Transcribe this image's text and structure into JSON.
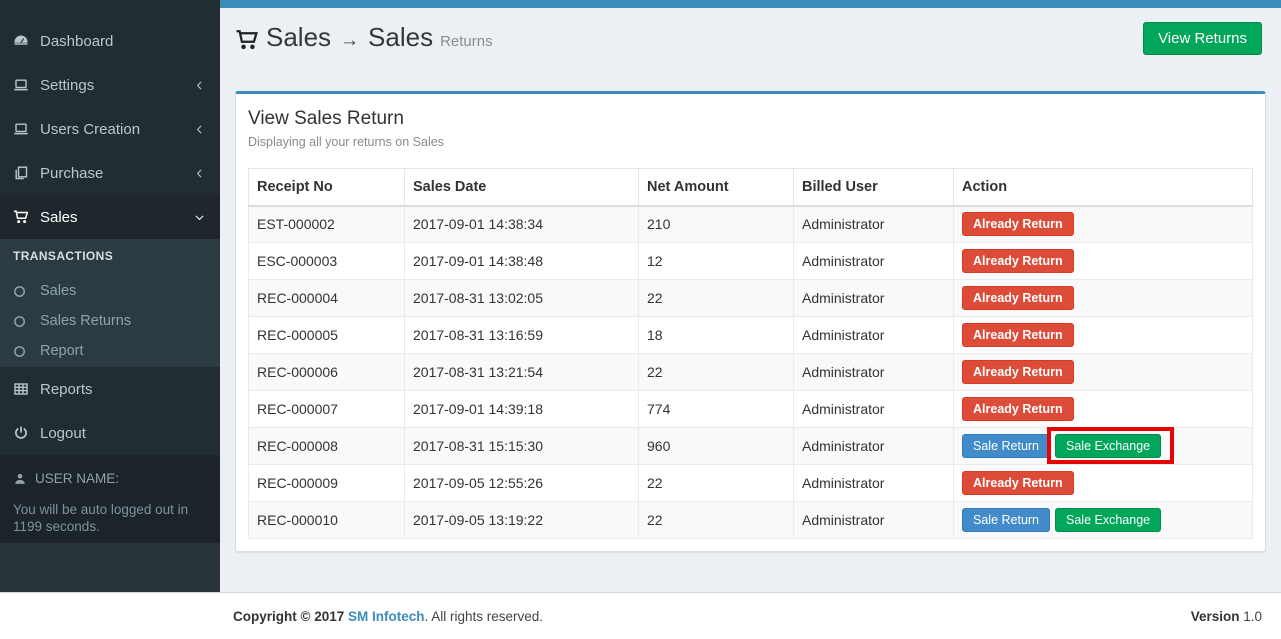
{
  "colors": {
    "topbar_blue": "#3c8dbc",
    "sidebar_dark": "#222d32",
    "submenu_dark": "#2c3b41",
    "button_green": "#00a65a",
    "button_blue": "#428bca",
    "button_red": "#dd4b39",
    "highlight_red": "#e60505",
    "content_bg": "#ecf0f5"
  },
  "sidebar": {
    "items": [
      {
        "label": "Dashboard",
        "icon": "dashboard-icon",
        "chevron": "",
        "active": false
      },
      {
        "label": "Settings",
        "icon": "laptop-icon",
        "chevron": "left",
        "active": false
      },
      {
        "label": "Users Creation",
        "icon": "laptop-icon",
        "chevron": "left",
        "active": false
      },
      {
        "label": "Purchase",
        "icon": "copy-icon",
        "chevron": "left",
        "active": false
      },
      {
        "label": "Sales",
        "icon": "cart-icon",
        "chevron": "down",
        "active": true
      }
    ],
    "submenu_header": "TRANSACTIONS",
    "submenu": [
      {
        "label": "Sales",
        "icon": "circle-outline-icon"
      },
      {
        "label": "Sales Returns",
        "icon": "circle-outline-icon"
      },
      {
        "label": "Report",
        "icon": "circle-outline-icon"
      }
    ],
    "items_bottom": [
      {
        "label": "Reports",
        "icon": "table-icon",
        "chevron": "",
        "active": false
      },
      {
        "label": "Logout",
        "icon": "power-icon",
        "chevron": "",
        "active": false
      }
    ],
    "user_panel": {
      "label": "USER NAME:",
      "note_line1": "You will be auto logged out in",
      "note_line2": "1199 seconds."
    }
  },
  "header": {
    "breadcrumb": {
      "section": "Sales",
      "arrow": "→",
      "page": "Sales",
      "sub": "Returns"
    },
    "view_returns_label": "View Returns"
  },
  "panel": {
    "title": "View Sales Return",
    "subtitle": "Displaying all your returns on Sales"
  },
  "table": {
    "columns": [
      "Receipt No",
      "Sales Date",
      "Net Amount",
      "Billed User",
      "Action"
    ],
    "rows": [
      {
        "receipt": "EST-000002",
        "date": "2017-09-01 14:38:34",
        "amount": "210",
        "user": "Administrator",
        "actions": [
          {
            "label": "Already Return",
            "type": "danger",
            "highlight": false
          }
        ]
      },
      {
        "receipt": "ESC-000003",
        "date": "2017-09-01 14:38:48",
        "amount": "12",
        "user": "Administrator",
        "actions": [
          {
            "label": "Already Return",
            "type": "danger",
            "highlight": false
          }
        ]
      },
      {
        "receipt": "REC-000004",
        "date": "2017-08-31 13:02:05",
        "amount": "22",
        "user": "Administrator",
        "actions": [
          {
            "label": "Already Return",
            "type": "danger",
            "highlight": false
          }
        ]
      },
      {
        "receipt": "REC-000005",
        "date": "2017-08-31 13:16:59",
        "amount": "18",
        "user": "Administrator",
        "actions": [
          {
            "label": "Already Return",
            "type": "danger",
            "highlight": false
          }
        ]
      },
      {
        "receipt": "REC-000006",
        "date": "2017-08-31 13:21:54",
        "amount": "22",
        "user": "Administrator",
        "actions": [
          {
            "label": "Already Return",
            "type": "danger",
            "highlight": false
          }
        ]
      },
      {
        "receipt": "REC-000007",
        "date": "2017-09-01 14:39:18",
        "amount": "774",
        "user": "Administrator",
        "actions": [
          {
            "label": "Already Return",
            "type": "danger",
            "highlight": false
          }
        ]
      },
      {
        "receipt": "REC-000008",
        "date": "2017-08-31 15:15:30",
        "amount": "960",
        "user": "Administrator",
        "actions": [
          {
            "label": "Sale Return",
            "type": "primary",
            "highlight": false
          },
          {
            "label": "Sale Exchange",
            "type": "success",
            "highlight": true
          }
        ]
      },
      {
        "receipt": "REC-000009",
        "date": "2017-09-05 12:55:26",
        "amount": "22",
        "user": "Administrator",
        "actions": [
          {
            "label": "Already Return",
            "type": "danger",
            "highlight": false
          }
        ]
      },
      {
        "receipt": "REC-000010",
        "date": "2017-09-05 13:19:22",
        "amount": "22",
        "user": "Administrator",
        "actions": [
          {
            "label": "Sale Return",
            "type": "primary",
            "highlight": false
          },
          {
            "label": "Sale Exchange",
            "type": "success",
            "highlight": false
          }
        ]
      }
    ]
  },
  "footer": {
    "copyright_prefix": "Copyright © 2017 ",
    "company": "SM Infotech",
    "copyright_suffix": ". All rights reserved.",
    "version_label": "Version",
    "version_value": " 1.0"
  }
}
